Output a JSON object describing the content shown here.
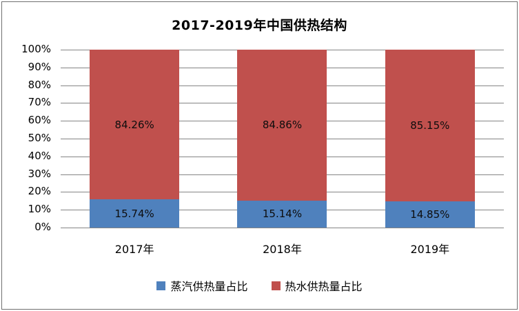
{
  "title": "2017-2019年中国供热结构",
  "chart_data": {
    "type": "bar",
    "stacked": true,
    "title": "2017-2019年中国供热结构",
    "categories": [
      "2017年",
      "2018年",
      "2019年"
    ],
    "series": [
      {
        "name": "蒸汽供热量占比",
        "color": "#4F81BD",
        "values": [
          15.74,
          15.14,
          14.85
        ],
        "labels": [
          "15.74%",
          "15.14%",
          "14.85%"
        ]
      },
      {
        "name": "热水供热量占比",
        "color": "#C0504D",
        "values": [
          84.26,
          84.86,
          85.15
        ],
        "labels": [
          "84.26%",
          "84.86%",
          "85.15%"
        ]
      }
    ],
    "xlabel": "",
    "ylabel": "",
    "ylim": [
      0,
      100
    ],
    "yticks": [
      "100%",
      "90%",
      "80%",
      "70%",
      "60%",
      "50%",
      "40%",
      "30%",
      "20%",
      "10%",
      "0%"
    ],
    "grid": true,
    "gridline_color": "#848484",
    "legend_position": "bottom"
  },
  "colors": {
    "frame_border": "#6e6e6e",
    "background": "#ffffff",
    "text": "#000000"
  }
}
